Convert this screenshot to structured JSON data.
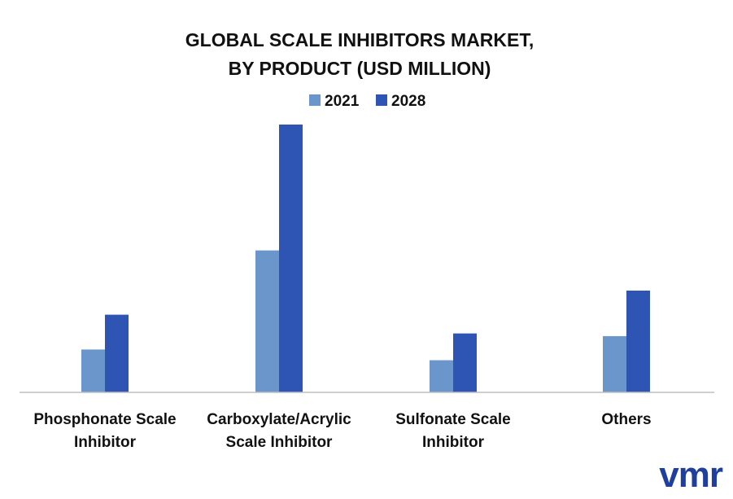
{
  "chart_data": {
    "type": "bar",
    "title_lines": [
      "GLOBAL SCALE INHIBITORS MARKET,",
      "BY PRODUCT (USD MILLION)"
    ],
    "categories": [
      [
        "Phosphonate Scale",
        "Inhibitor"
      ],
      [
        "Carboxylate/Acrylic",
        "Scale Inhibitor"
      ],
      [
        "Sulfonate Scale",
        "Inhibitor"
      ],
      [
        "Others"
      ]
    ],
    "series": [
      {
        "name": "2021",
        "color": "#6b96cc",
        "values": [
          16,
          53,
          12,
          21
        ]
      },
      {
        "name": "2028",
        "color": "#2e55b3",
        "values": [
          29,
          100,
          22,
          38
        ]
      }
    ],
    "ylim": [
      0,
      100
    ],
    "grid": false,
    "legend_position": "top-center"
  },
  "logo": {
    "text": "vmr",
    "color": "#1f3f9e"
  }
}
